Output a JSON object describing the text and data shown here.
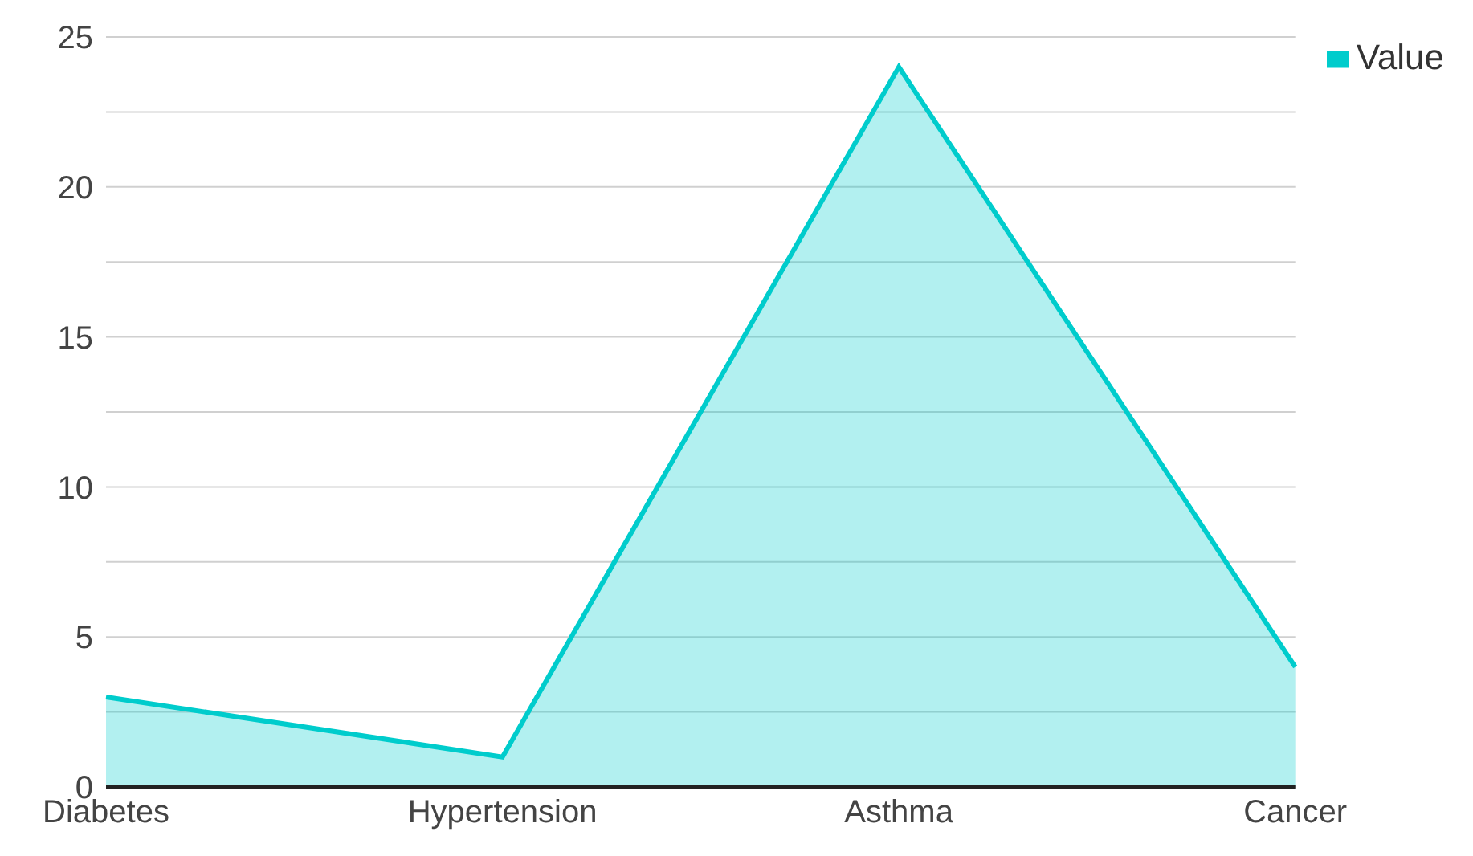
{
  "chart_data": {
    "type": "area",
    "categories": [
      "Diabetes",
      "Hypertension",
      "Asthma",
      "Cancer"
    ],
    "series": [
      {
        "name": "Value",
        "color": "#00cccc",
        "values": [
          3,
          1,
          24,
          4
        ]
      }
    ],
    "ylim": [
      0,
      25
    ],
    "yticks": [
      0,
      {
        "value": 2.5,
        "label": null
      },
      5,
      {
        "value": 7.5,
        "label": null
      },
      10,
      {
        "value": 12.5,
        "label": null
      },
      15,
      {
        "value": 17.5,
        "label": null
      },
      20,
      {
        "value": 22.5,
        "label": null
      },
      25
    ],
    "grid": "y",
    "legend": "top right"
  }
}
